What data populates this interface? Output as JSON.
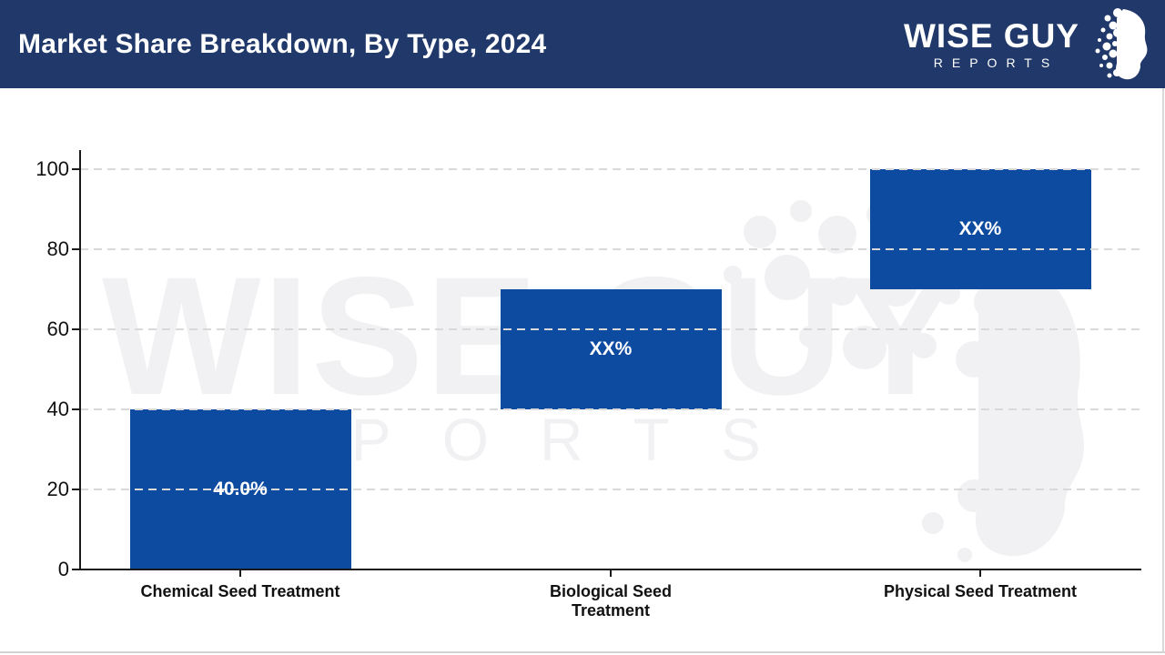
{
  "header": {
    "title": "Market Share Breakdown, By Type, 2024",
    "logo": {
      "line1": "WISE GUY",
      "line2": "REPORTS"
    },
    "bg_color": "#20396a"
  },
  "watermark": {
    "line1": "WISE GUY",
    "line2": "REPORTS"
  },
  "chart_data": {
    "type": "bar",
    "subtype": "floating-segmented-bar",
    "title": "Market Share Breakdown, By Type, 2024",
    "categories": [
      "Chemical Seed Treatment",
      "Biological Seed Treatment",
      "Physical Seed Treatment"
    ],
    "segments": [
      {
        "category": "Chemical Seed Treatment",
        "start": 0,
        "end": 40,
        "size": 40,
        "label": "40.0%"
      },
      {
        "category": "Biological Seed Treatment",
        "start": 40,
        "end": 70,
        "size": 30,
        "label": "XX%"
      },
      {
        "category": "Physical Seed Treatment",
        "start": 70,
        "end": 100,
        "size": 30,
        "label": "XX%"
      }
    ],
    "ylim": [
      0,
      100
    ],
    "yticks": [
      0,
      20,
      40,
      60,
      80,
      100
    ],
    "xlabel": "",
    "ylabel": "",
    "grid": "horizontal-dashed",
    "legend": "none",
    "bar_color": "#0d4ba1",
    "value_label_color": "#ffffff",
    "gridline_color": "#d9d9d9",
    "axis_color": "#1a1a1a"
  }
}
